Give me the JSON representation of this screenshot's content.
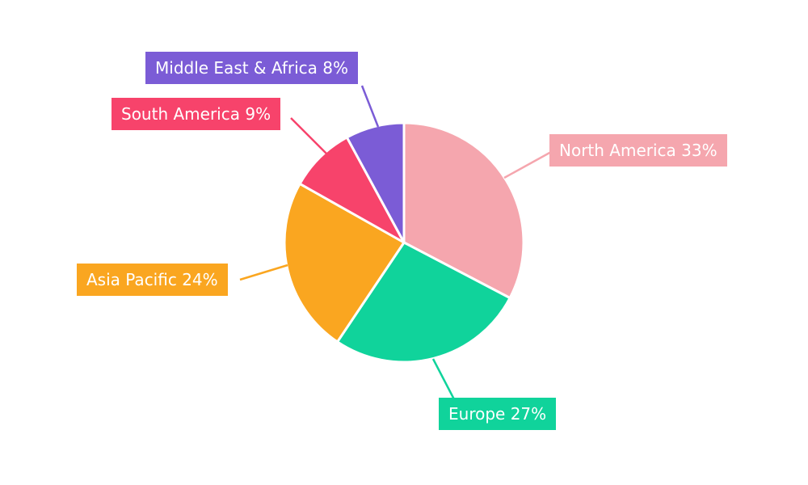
{
  "chart_data": {
    "type": "pie",
    "title": "",
    "total": 100,
    "unit": "%",
    "background": "#FFFFFF",
    "label_text_color": "#FFFFFF",
    "slice_border_color": "#FFFFFF",
    "segments": [
      {
        "name": "North America",
        "value": 33,
        "percent": "33%",
        "label": "North America 33%",
        "color": "#F5A6AE"
      },
      {
        "name": "Europe",
        "value": 27,
        "percent": "27%",
        "label": "Europe 27%",
        "color": "#10D39B"
      },
      {
        "name": "Asia Pacific",
        "value": 24,
        "percent": "24%",
        "label": "Asia Pacific 24%",
        "color": "#FAA620"
      },
      {
        "name": "South America",
        "value": 9,
        "percent": "9%",
        "label": "South America 9%",
        "color": "#F7436B"
      },
      {
        "name": "Middle East & Africa",
        "value": 8,
        "percent": "8%",
        "label": "Middle East & Africa 8%",
        "color": "#7B5CD6"
      }
    ],
    "layout": {
      "start_angle_deg": 0,
      "direction": "clockwise",
      "legend": "none",
      "label_style": "boxed-callout-with-leader-lines"
    }
  }
}
